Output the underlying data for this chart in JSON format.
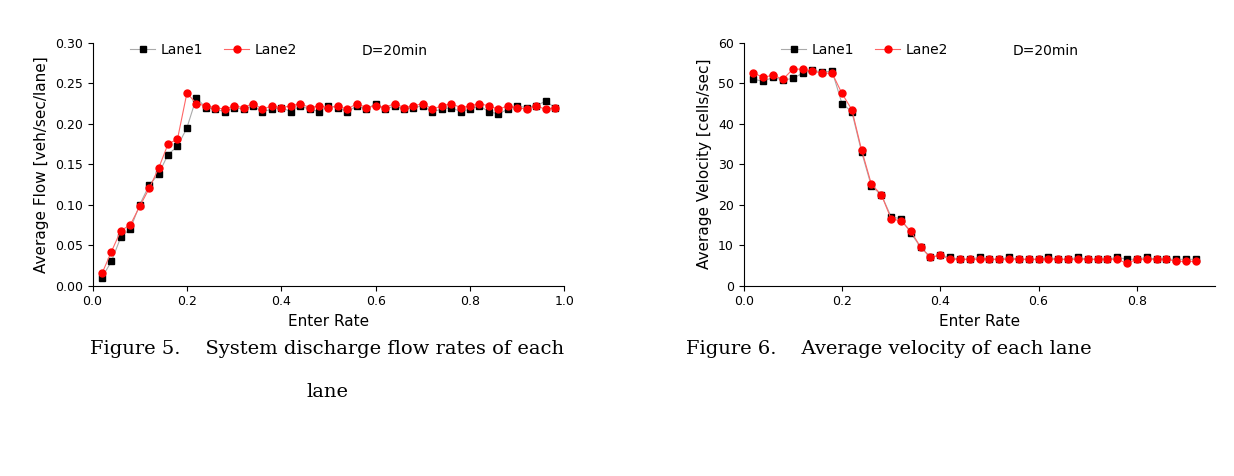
{
  "fig1": {
    "xlabel": "Enter Rate",
    "ylabel": "Average Flow [veh/sec/lane]",
    "legend_label1": "Lane1",
    "legend_label2": "Lane2",
    "legend_extra": "D=20min",
    "xlim": [
      0.0,
      1.0
    ],
    "ylim": [
      0.0,
      0.3
    ],
    "yticks": [
      0.0,
      0.05,
      0.1,
      0.15,
      0.2,
      0.25,
      0.3
    ],
    "xticks": [
      0.0,
      0.2,
      0.4,
      0.6,
      0.8,
      1.0
    ],
    "lane1_x": [
      0.02,
      0.04,
      0.06,
      0.08,
      0.1,
      0.12,
      0.14,
      0.16,
      0.18,
      0.2,
      0.22,
      0.24,
      0.26,
      0.28,
      0.3,
      0.32,
      0.34,
      0.36,
      0.38,
      0.4,
      0.42,
      0.44,
      0.46,
      0.48,
      0.5,
      0.52,
      0.54,
      0.56,
      0.58,
      0.6,
      0.62,
      0.64,
      0.66,
      0.68,
      0.7,
      0.72,
      0.74,
      0.76,
      0.78,
      0.8,
      0.82,
      0.84,
      0.86,
      0.88,
      0.9,
      0.92,
      0.94,
      0.96,
      0.98
    ],
    "lane1_y": [
      0.01,
      0.03,
      0.06,
      0.07,
      0.1,
      0.124,
      0.138,
      0.162,
      0.172,
      0.195,
      0.232,
      0.22,
      0.218,
      0.215,
      0.22,
      0.218,
      0.222,
      0.215,
      0.218,
      0.22,
      0.215,
      0.222,
      0.218,
      0.215,
      0.222,
      0.22,
      0.215,
      0.222,
      0.218,
      0.225,
      0.218,
      0.222,
      0.218,
      0.22,
      0.222,
      0.215,
      0.218,
      0.22,
      0.215,
      0.218,
      0.222,
      0.215,
      0.212,
      0.218,
      0.222,
      0.22,
      0.222,
      0.228,
      0.22
    ],
    "lane2_x": [
      0.02,
      0.04,
      0.06,
      0.08,
      0.1,
      0.12,
      0.14,
      0.16,
      0.18,
      0.2,
      0.22,
      0.24,
      0.26,
      0.28,
      0.3,
      0.32,
      0.34,
      0.36,
      0.38,
      0.4,
      0.42,
      0.44,
      0.46,
      0.48,
      0.5,
      0.52,
      0.54,
      0.56,
      0.58,
      0.6,
      0.62,
      0.64,
      0.66,
      0.68,
      0.7,
      0.72,
      0.74,
      0.76,
      0.78,
      0.8,
      0.82,
      0.84,
      0.86,
      0.88,
      0.9,
      0.92,
      0.94,
      0.96,
      0.98
    ],
    "lane2_y": [
      0.015,
      0.042,
      0.068,
      0.075,
      0.098,
      0.12,
      0.145,
      0.175,
      0.181,
      0.238,
      0.225,
      0.222,
      0.22,
      0.218,
      0.222,
      0.22,
      0.225,
      0.218,
      0.222,
      0.22,
      0.222,
      0.225,
      0.22,
      0.222,
      0.22,
      0.222,
      0.218,
      0.225,
      0.22,
      0.222,
      0.22,
      0.225,
      0.22,
      0.222,
      0.225,
      0.218,
      0.222,
      0.225,
      0.22,
      0.222,
      0.225,
      0.222,
      0.218,
      0.222,
      0.22,
      0.218,
      0.222,
      0.218,
      0.22
    ],
    "line_color1": "#aaaaaa",
    "line_color2": "#ff6666",
    "marker_color1": "#000000",
    "marker_color2": "#ff0000",
    "marker1": "s",
    "marker2": "o",
    "markersize": 5,
    "linewidth": 0.8
  },
  "fig2": {
    "xlabel": "Enter Rate",
    "ylabel": "Average Velocity [cells/sec]",
    "legend_label1": "Lane1",
    "legend_label2": "Lane2",
    "legend_extra": "D=20min",
    "xlim": [
      0.0,
      0.96
    ],
    "ylim": [
      0,
      60
    ],
    "yticks": [
      0,
      10,
      20,
      30,
      40,
      50,
      60
    ],
    "xticks": [
      0.0,
      0.2,
      0.4,
      0.6,
      0.8
    ],
    "lane1_x": [
      0.02,
      0.04,
      0.06,
      0.08,
      0.1,
      0.12,
      0.14,
      0.16,
      0.18,
      0.2,
      0.22,
      0.24,
      0.26,
      0.28,
      0.3,
      0.32,
      0.34,
      0.36,
      0.38,
      0.4,
      0.42,
      0.44,
      0.46,
      0.48,
      0.5,
      0.52,
      0.54,
      0.56,
      0.58,
      0.6,
      0.62,
      0.64,
      0.66,
      0.68,
      0.7,
      0.72,
      0.74,
      0.76,
      0.78,
      0.8,
      0.82,
      0.84,
      0.86,
      0.88,
      0.9,
      0.92
    ],
    "lane1_y": [
      51.0,
      50.5,
      51.5,
      50.8,
      51.2,
      52.5,
      53.2,
      52.8,
      53.0,
      45.0,
      43.0,
      33.0,
      24.5,
      22.5,
      17.0,
      16.5,
      13.0,
      9.5,
      7.0,
      7.5,
      7.0,
      6.5,
      6.5,
      7.0,
      6.5,
      6.5,
      7.0,
      6.5,
      6.5,
      6.5,
      7.0,
      6.5,
      6.5,
      7.0,
      6.5,
      6.5,
      6.5,
      7.0,
      6.5,
      6.5,
      7.0,
      6.5,
      6.5,
      6.5,
      6.5,
      6.5
    ],
    "lane2_x": [
      0.02,
      0.04,
      0.06,
      0.08,
      0.1,
      0.12,
      0.14,
      0.16,
      0.18,
      0.2,
      0.22,
      0.24,
      0.26,
      0.28,
      0.3,
      0.32,
      0.34,
      0.36,
      0.38,
      0.4,
      0.42,
      0.44,
      0.46,
      0.48,
      0.5,
      0.52,
      0.54,
      0.56,
      0.58,
      0.6,
      0.62,
      0.64,
      0.66,
      0.68,
      0.7,
      0.72,
      0.74,
      0.76,
      0.78,
      0.8,
      0.82,
      0.84,
      0.86,
      0.88,
      0.9,
      0.92
    ],
    "lane2_y": [
      52.5,
      51.5,
      52.0,
      51.0,
      53.5,
      53.5,
      53.0,
      52.5,
      52.5,
      47.5,
      43.5,
      33.5,
      25.0,
      22.5,
      16.5,
      16.0,
      13.5,
      9.5,
      7.0,
      7.5,
      6.5,
      6.5,
      6.5,
      6.5,
      6.5,
      6.5,
      6.5,
      6.5,
      6.5,
      6.5,
      6.5,
      6.5,
      6.5,
      6.5,
      6.5,
      6.5,
      6.5,
      6.5,
      5.5,
      6.5,
      6.5,
      6.5,
      6.5,
      6.0,
      6.0,
      6.0
    ],
    "line_color1": "#aaaaaa",
    "line_color2": "#ff6666",
    "marker_color1": "#000000",
    "marker_color2": "#ff0000",
    "marker1": "s",
    "marker2": "o",
    "markersize": 5,
    "linewidth": 0.8
  },
  "caption1_line1": "Figure 5.    System discharge flow rates of each",
  "caption1_line2": "lane",
  "caption2": "Figure 6.    Average velocity of each lane"
}
